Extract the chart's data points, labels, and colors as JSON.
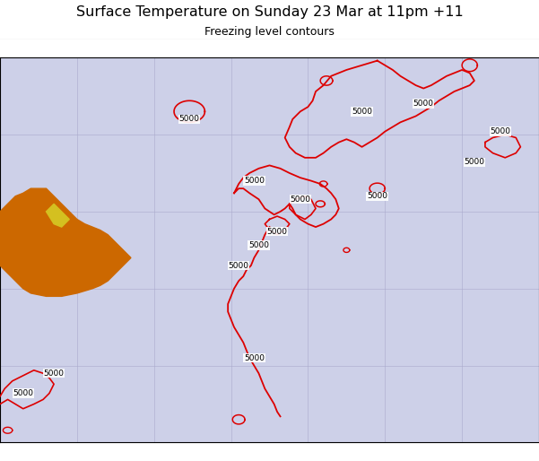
{
  "title": "Surface Temperature on Sunday 23 Mar at 11pm +11",
  "subtitle": "Freezing level contours",
  "title_fontsize": 11.5,
  "subtitle_fontsize": 9,
  "fig_width": 6.01,
  "fig_height": 5.14,
  "dpi": 100,
  "map_bg_color": "#cdd0e8",
  "title_area_color": "#ffffff",
  "border_color": "#888888",
  "grid_color": "#aaaacc",
  "contour_color": "#dd0000",
  "lon_min": 140.0,
  "lon_max": 175.0,
  "lat_min": -20.0,
  "lat_max": 5.0,
  "grid_lons": [
    145,
    150,
    155,
    160,
    165,
    170,
    175
  ],
  "grid_lats": [
    -15,
    -10,
    -5,
    0
  ]
}
